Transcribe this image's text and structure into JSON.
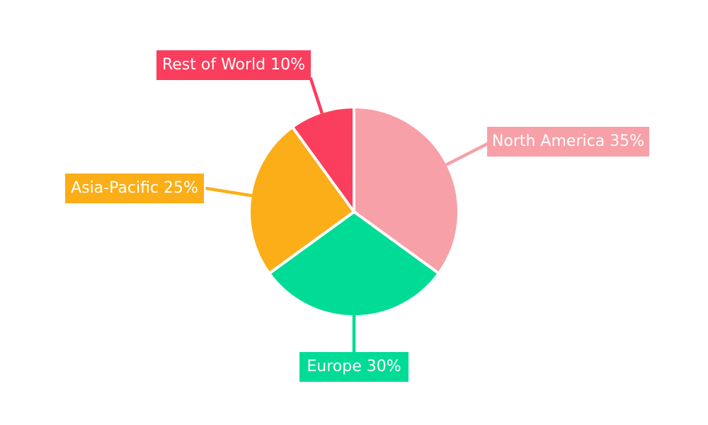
{
  "page": {
    "background_color": "#ffffff",
    "label_text_color": "#ffffff"
  },
  "chart_data": {
    "type": "pie",
    "start_angle": "top",
    "direction": "clockwise",
    "total": 100,
    "slices": [
      {
        "label": "North America",
        "value": 35,
        "display": "North America 35%",
        "color": "#F8A0A7"
      },
      {
        "label": "Europe",
        "value": 30,
        "display": "Europe 30%",
        "color": "#00DC96"
      },
      {
        "label": "Asia-Pacific",
        "value": 25,
        "display": "Asia-Pacific 25%",
        "color": "#FBAE17"
      },
      {
        "label": "Rest of World",
        "value": 10,
        "display": "Rest of World 10%",
        "color": "#FB3E5D"
      }
    ]
  }
}
